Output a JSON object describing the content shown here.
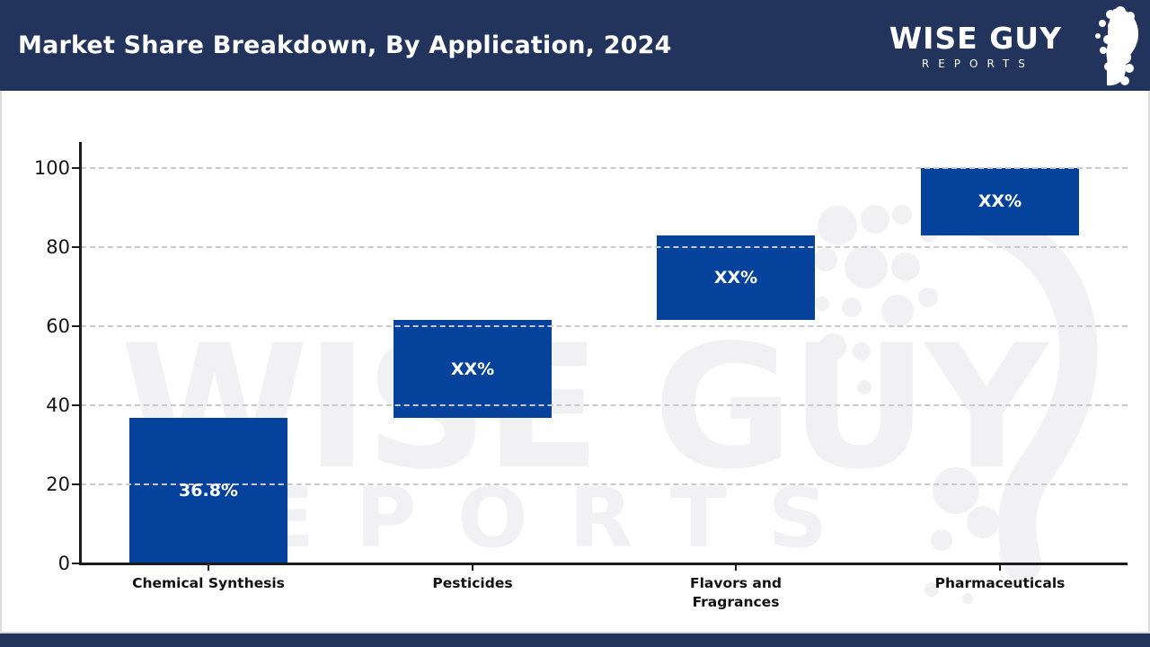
{
  "header": {
    "title": "Market Share Breakdown, By Application, 2024",
    "logo": {
      "line1": "WISE GUY",
      "line2": "REPORTS"
    }
  },
  "watermark": {
    "line1": "WISE GUY",
    "line2": "REPORTS"
  },
  "colors": {
    "header_bg": "#22345B",
    "footer_bg": "#22345B",
    "bar_blue": "#05429B",
    "grid_gray": "#C9C9C9",
    "axis_black": "#1C1C1C",
    "watermark_gray": "#F1F1F3",
    "bar_label_white": "#FFFFFF"
  },
  "chart_data": {
    "type": "bar",
    "subtype": "stacked-waterfall",
    "title": "Market Share Breakdown, By Application, 2024",
    "categories": [
      "Chemical Synthesis",
      "Pesticides",
      "Flavors and Fragrances",
      "Pharmaceuticals"
    ],
    "category_label_lines": [
      [
        "Chemical Synthesis"
      ],
      [
        "Pesticides"
      ],
      [
        "Flavors and",
        "Fragrances"
      ],
      [
        "Pharmaceuticals"
      ]
    ],
    "segments": [
      {
        "category": "Chemical Synthesis",
        "start": 0,
        "end": 36.8,
        "label": "36.8%"
      },
      {
        "category": "Pesticides",
        "start": 36.8,
        "end": 61.6,
        "label": "XX%"
      },
      {
        "category": "Flavors and Fragrances",
        "start": 61.6,
        "end": 83.0,
        "label": "XX%"
      },
      {
        "category": "Pharmaceuticals",
        "start": 83.0,
        "end": 100.0,
        "label": "XX%"
      }
    ],
    "ylim": [
      0,
      100
    ],
    "yticks": [
      0,
      20,
      40,
      60,
      80,
      100
    ],
    "xlabel": "",
    "ylabel": "",
    "grid": "dashed-horizontal",
    "legend": "none"
  }
}
